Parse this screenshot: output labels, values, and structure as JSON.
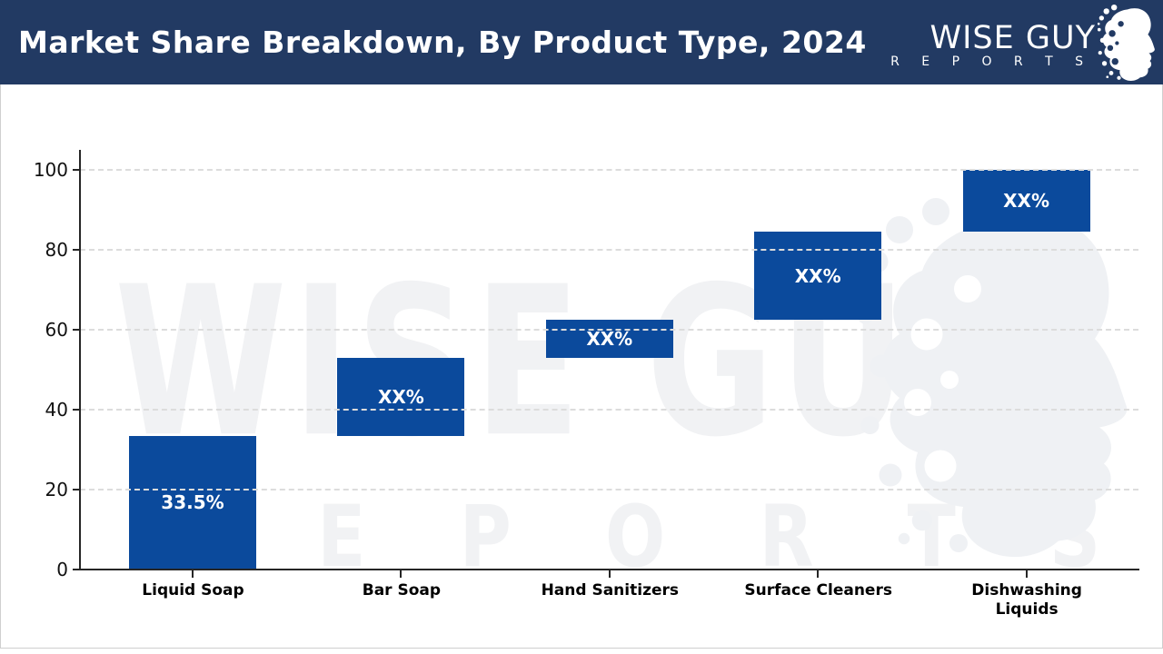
{
  "header": {
    "title": "Market Share Breakdown, By Product Type, 2024",
    "logo": {
      "line1": "WISE GUY",
      "line2": "R E P O R T S",
      "face_icon": "dotted-face-profile"
    }
  },
  "watermark": {
    "line1": "WISE GUY",
    "line2": "R E P O R T S",
    "face_icon": "dotted-face-profile"
  },
  "colors": {
    "header_bg": "#223a63",
    "bar_fill": "#0b4a9c",
    "bar_label_text": "#ffffff",
    "gridline": "#dcdcdc",
    "axis": "#262626",
    "watermark": "#f1f2f4"
  },
  "chart_data": {
    "type": "bar",
    "subtype": "waterfall",
    "title": "Market Share Breakdown, By Product Type, 2024",
    "categories": [
      "Liquid Soap",
      "Bar Soap",
      "Hand Sanitizers",
      "Surface Cleaners",
      "Dishwashing Liquids"
    ],
    "segments": [
      {
        "category": "Liquid Soap",
        "start": 0,
        "end": 33.5,
        "label": "33.5%"
      },
      {
        "category": "Bar Soap",
        "start": 33.5,
        "end": 53,
        "label": "XX%"
      },
      {
        "category": "Hand Sanitizers",
        "start": 53,
        "end": 62.5,
        "label": "XX%"
      },
      {
        "category": "Surface Cleaners",
        "start": 62.5,
        "end": 84.5,
        "label": "XX%"
      },
      {
        "category": "Dishwashing Liquids",
        "start": 84.5,
        "end": 100,
        "label": "XX%"
      }
    ],
    "xlabel": "",
    "ylabel": "",
    "ylim": [
      0,
      100
    ],
    "y_ticks": [
      0,
      20,
      40,
      60,
      80,
      100
    ],
    "grid": "horizontal-dashed",
    "legend": "none"
  }
}
